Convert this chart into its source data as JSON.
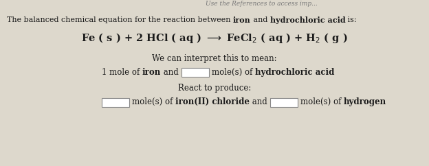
{
  "bg_color": "#ddd8cc",
  "top_text": "Use the References to access imp...",
  "figsize": [
    6.24,
    2.42
  ],
  "dpi": 100,
  "title_parts": [
    [
      "The balanced chemical equation for the reaction between ",
      false
    ],
    [
      "iron",
      true
    ],
    [
      " and ",
      false
    ],
    [
      "hydrochloric acid",
      true
    ],
    [
      " is:",
      false
    ]
  ],
  "equation": "Fe ( s ) + 2 HCl ( aq ) ⟶ FeCl₂ ( aq ) + H₂ ( g )",
  "interpret_text": "We can interpret this to mean:",
  "line1_parts": [
    [
      "1 mole of ",
      false
    ],
    [
      "iron",
      true
    ],
    [
      " and",
      false
    ]
  ],
  "line1_after_parts": [
    [
      "mole(s) of ",
      false
    ],
    [
      "hydrochloric acid",
      true
    ]
  ],
  "react_text": "React to produce:",
  "line2_parts": [
    [
      "mole(s) of ",
      false
    ],
    [
      "iron(II) chloride",
      true
    ],
    [
      " and",
      false
    ]
  ],
  "line2_after_parts": [
    [
      "mole(s) of ",
      false
    ],
    [
      "hydrogen",
      true
    ]
  ],
  "text_color": "#1a1a1a",
  "box_color": "#ffffff",
  "box_edge_color": "#888888"
}
